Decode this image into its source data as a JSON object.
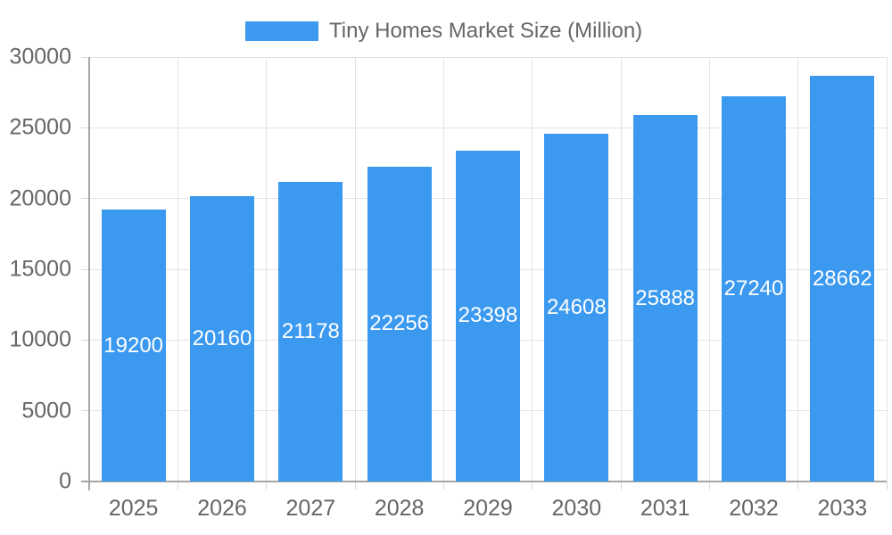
{
  "legend": {
    "label": "Tiny Homes Market Size (Million)"
  },
  "chart_data": {
    "type": "bar",
    "title": "Tiny Homes Market Size (Million)",
    "series_name": "Tiny Homes Market Size (Million)",
    "categories": [
      "2025",
      "2026",
      "2027",
      "2028",
      "2029",
      "2030",
      "2031",
      "2032",
      "2033"
    ],
    "values": [
      19200,
      20160,
      21178,
      22256,
      23398,
      24608,
      25888,
      27240,
      28662
    ],
    "xlabel": "",
    "ylabel": "",
    "ylim": [
      0,
      30000
    ],
    "yticks": [
      0,
      5000,
      10000,
      15000,
      20000,
      25000,
      30000
    ],
    "grid": true,
    "legend_position": "top",
    "bar_color": "#3B99F0",
    "value_label_color": "#ffffff",
    "axis_text_color": "#666666",
    "gridline_color": "#e3e3e3",
    "tick_color": "#d9d9d9",
    "axis_line_color": "#a6a6a6"
  }
}
